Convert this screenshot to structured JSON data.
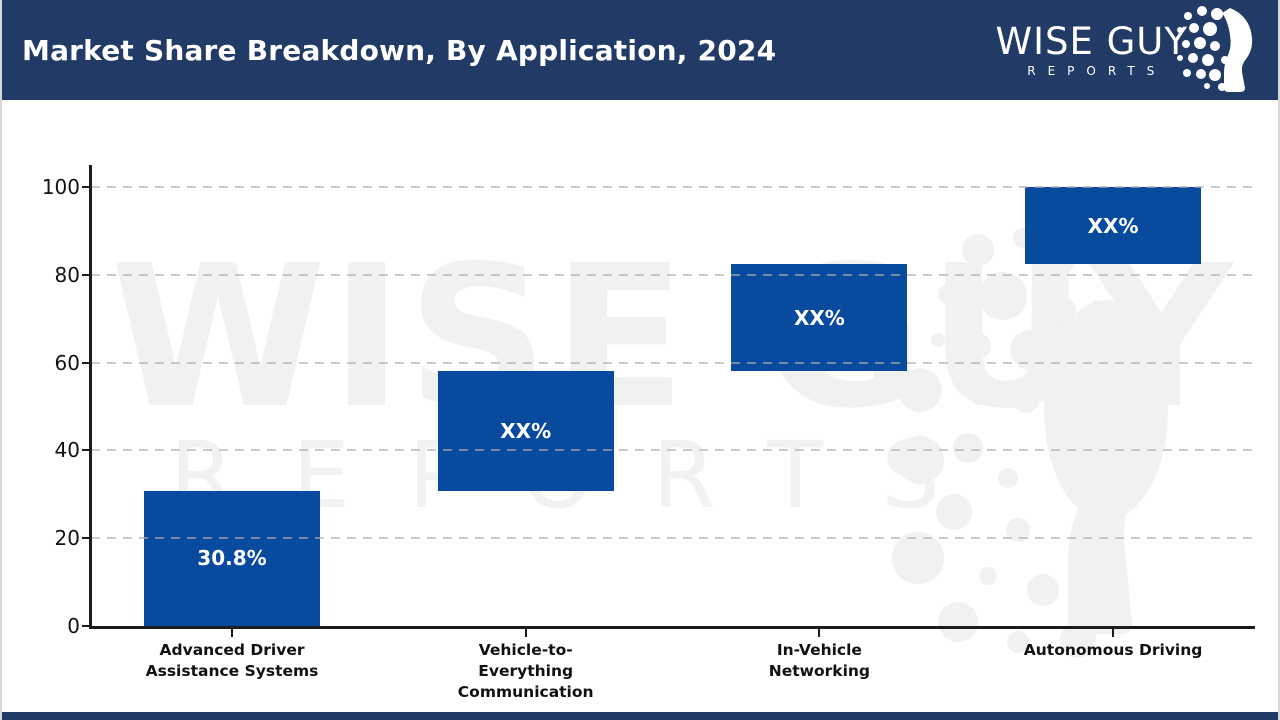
{
  "header": {
    "title": "Market Share Breakdown, By Application, 2024",
    "logo": {
      "brand": "WISE GUY",
      "sub": "REPORTS"
    }
  },
  "watermark": {
    "brand": "WISE GUY",
    "sub": "REPORTS"
  },
  "chart_data": {
    "type": "bar",
    "subtype": "waterfall",
    "title": "Market Share Breakdown, By Application, 2024",
    "categories": [
      "Advanced Driver\nAssistance Systems",
      "Vehicle-to-\nEverything\nCommunication",
      "In-Vehicle\nNetworking",
      "Autonomous Driving"
    ],
    "segments": [
      {
        "category": "Advanced Driver Assistance Systems",
        "start": 0,
        "end": 30.8,
        "label": "30.8%"
      },
      {
        "category": "Vehicle-to-Everything Communication",
        "start": 30.8,
        "end": 58.1,
        "label": "XX%"
      },
      {
        "category": "In-Vehicle Networking",
        "start": 58.1,
        "end": 82.4,
        "label": "XX%"
      },
      {
        "category": "Autonomous Driving",
        "start": 82.4,
        "end": 100,
        "label": "XX%"
      }
    ],
    "ylim": [
      0,
      100
    ],
    "yticks": [
      0,
      20,
      40,
      60,
      80,
      100
    ],
    "grid": {
      "horizontal": true,
      "style": "dashed"
    },
    "legend": null,
    "xlabel": "",
    "ylabel": ""
  },
  "colors": {
    "header_bg": "#213a66",
    "bar": "#084a9e",
    "bar_label": "#ffffff",
    "gridline": "#d9d9d9",
    "axis": "#1c1c1c",
    "watermark": "#f1f1f1"
  }
}
